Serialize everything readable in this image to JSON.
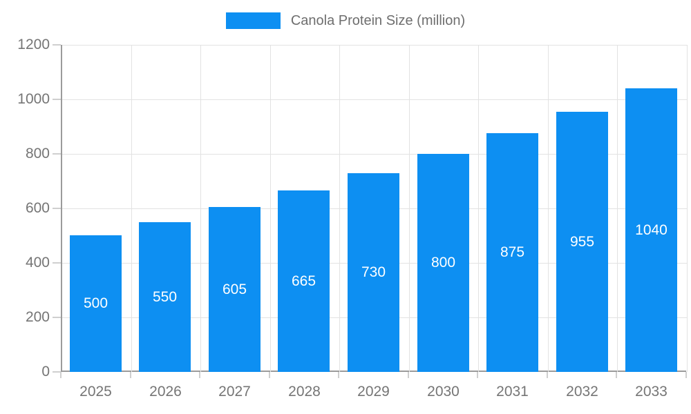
{
  "legend": {
    "label": "Canola Protein Size (million)"
  },
  "colors": {
    "bar": "#0d8ff2",
    "grid": "#e2e2e2",
    "axis": "#9b9b9b",
    "tick": "#cfcfcf",
    "text": "#757575",
    "value_label": "#ffffff"
  },
  "chart_data": {
    "type": "bar",
    "title": "",
    "xlabel": "",
    "ylabel": "",
    "categories": [
      "2025",
      "2026",
      "2027",
      "2028",
      "2029",
      "2030",
      "2031",
      "2032",
      "2033"
    ],
    "values": [
      500,
      550,
      605,
      665,
      730,
      800,
      875,
      955,
      1040
    ],
    "series_name": "Canola Protein Size (million)",
    "ylim": [
      0,
      1200
    ],
    "yticks": [
      0,
      200,
      400,
      600,
      800,
      1000,
      1200
    ],
    "grid": true,
    "legend_position": "top-center",
    "value_labels_shown": true,
    "value_labels_position": "center-of-bar"
  }
}
